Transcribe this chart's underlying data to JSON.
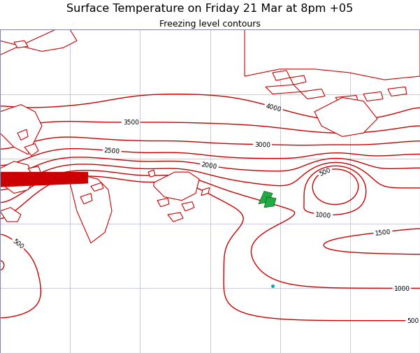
{
  "title": "Surface Temperature on Friday 21 Mar at 8pm +05",
  "subtitle": "Freezing level contours",
  "bg_color": "#cdd0e8",
  "contour_color": "#cc0000",
  "grid_color": "#b0b4cc",
  "title_fontsize": 11.5,
  "subtitle_fontsize": 9,
  "header_bg": "#ffffff",
  "contour_lw": 1.0,
  "label_fontsize": 6.5
}
